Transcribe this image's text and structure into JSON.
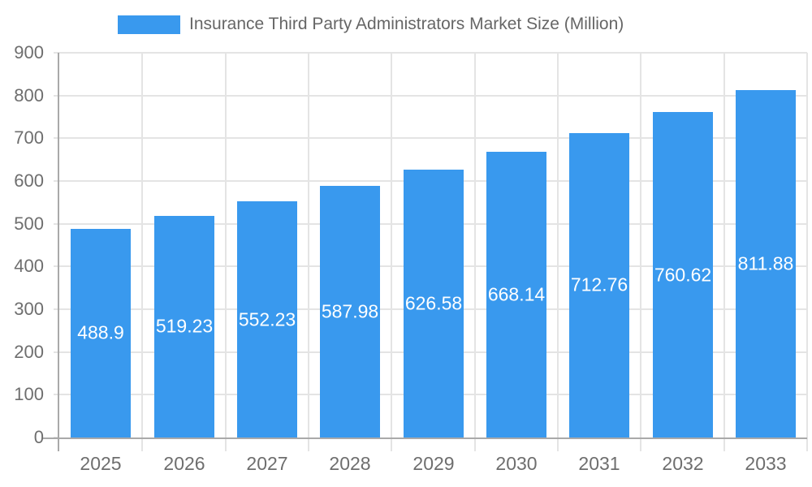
{
  "legend": {
    "label": "Insurance Third Party Administrators Market Size (Million)"
  },
  "colors": {
    "bar": "#3999ee",
    "grid": "#e4e4e4",
    "axis": "#a9a9a9",
    "tick_text": "#6e6e6e",
    "value_text": "#ffffff",
    "legend_text": "#666666",
    "background": "#ffffff"
  },
  "chart_data": {
    "type": "bar",
    "title": "Insurance Third Party Administrators Market Size (Million)",
    "series_name": "Insurance Third Party Administrators Market Size (Million)",
    "categories": [
      "2025",
      "2026",
      "2027",
      "2028",
      "2029",
      "2030",
      "2031",
      "2032",
      "2033"
    ],
    "values": [
      488.9,
      519.23,
      552.23,
      587.98,
      626.58,
      668.14,
      712.76,
      760.62,
      811.88
    ],
    "xlabel": "",
    "ylabel": "",
    "ylim": [
      0,
      900
    ],
    "ytick_step": 100,
    "yticks": [
      0,
      100,
      200,
      300,
      400,
      500,
      600,
      700,
      800,
      900
    ],
    "grid": true,
    "legend_position": "top",
    "value_labels": "centered inside bars, white"
  }
}
